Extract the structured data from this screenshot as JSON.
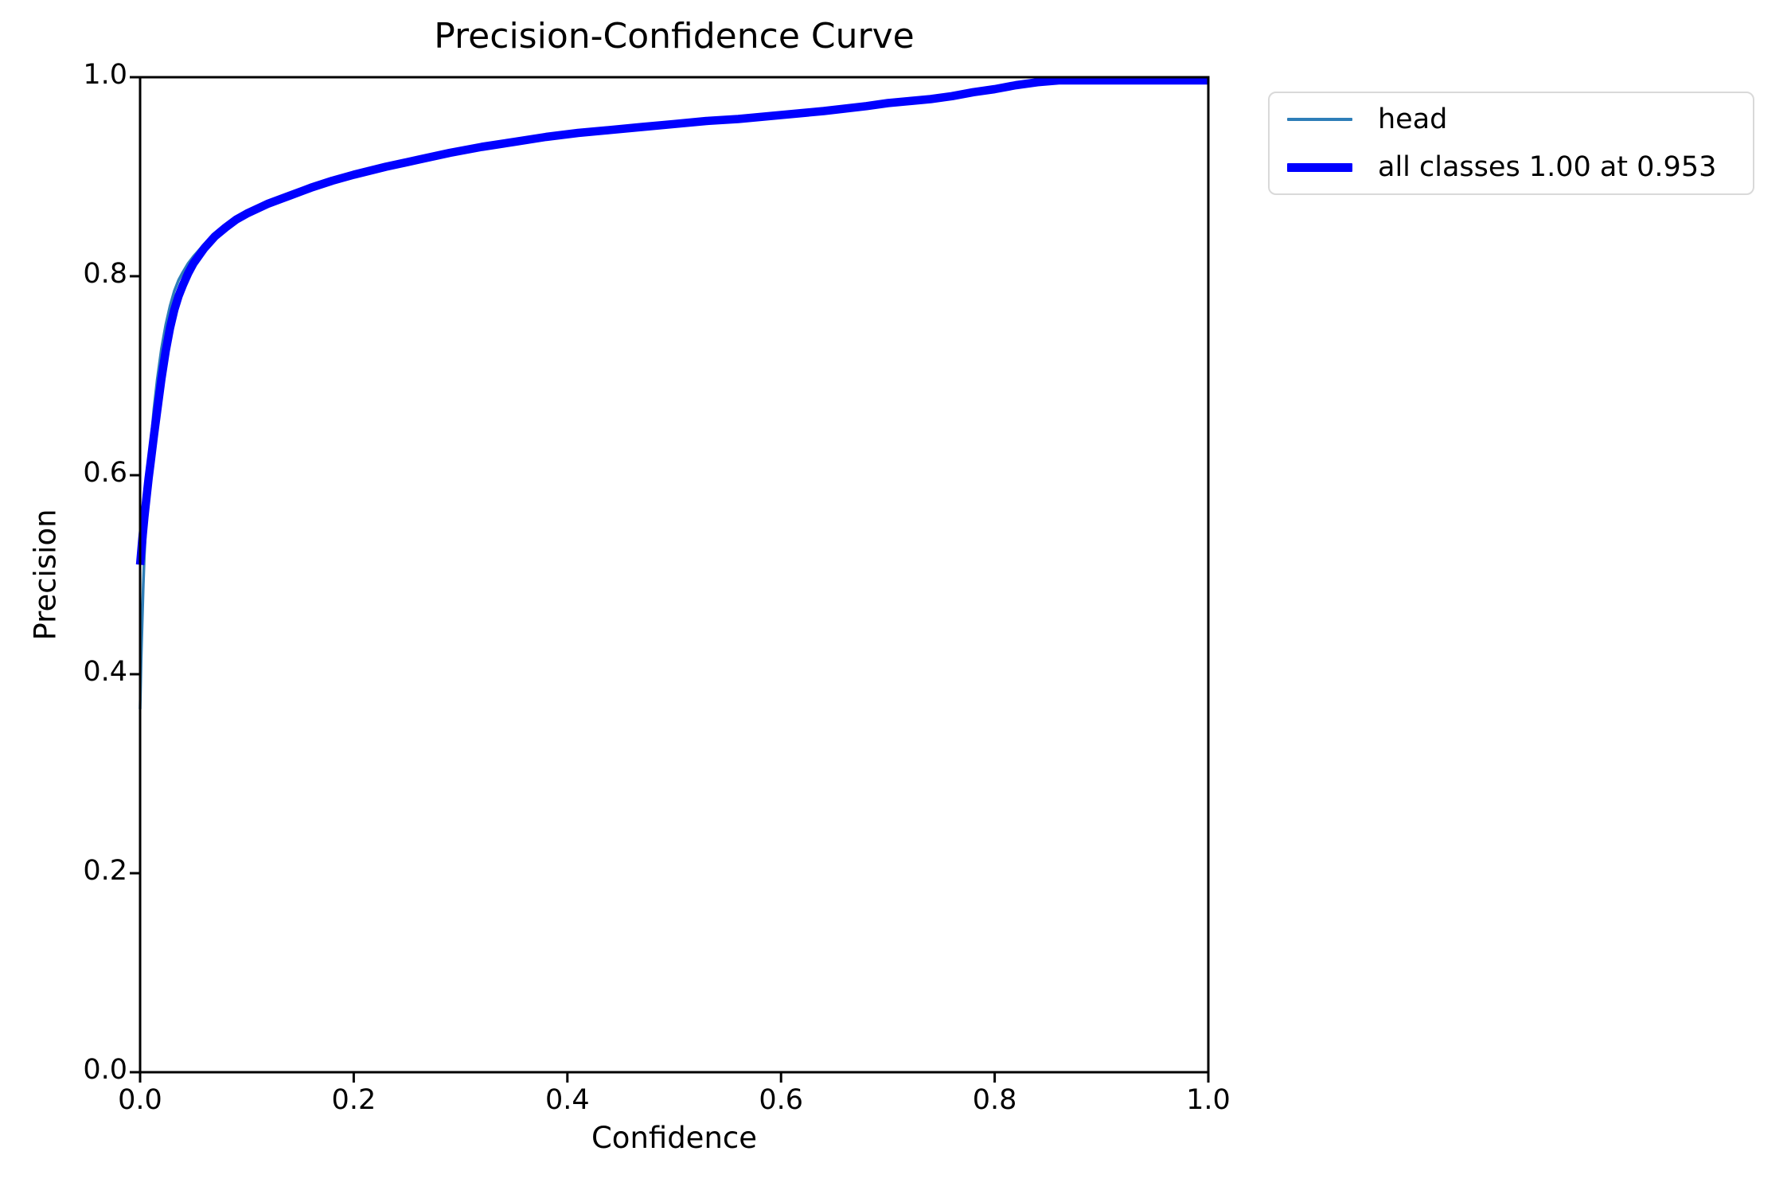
{
  "title": "Precision-Confidence Curve",
  "x_axis": {
    "label": "Confidence",
    "ticks": [
      "0.0",
      "0.2",
      "0.4",
      "0.6",
      "0.8",
      "1.0"
    ]
  },
  "y_axis": {
    "label": "Precision",
    "ticks": [
      "0.0",
      "0.2",
      "0.4",
      "0.6",
      "0.8",
      "1.0"
    ]
  },
  "legend": {
    "items": [
      {
        "label": "head",
        "style": "thin"
      },
      {
        "label": "all classes 1.00 at 0.953",
        "style": "thick"
      }
    ]
  },
  "chart_data": {
    "type": "line",
    "title": "Precision-Confidence Curve",
    "xlabel": "Confidence",
    "ylabel": "Precision",
    "xlim": [
      0,
      1
    ],
    "ylim": [
      0,
      1
    ],
    "grid": false,
    "legend_position": "outside-upper-right",
    "annotation": "all classes reach precision 1.00 at confidence 0.953",
    "series": [
      {
        "name": "head",
        "color": "#2e7eb8",
        "linewidth": "thin",
        "points": [
          [
            0.0,
            0.365
          ],
          [
            0.001,
            0.415
          ],
          [
            0.002,
            0.455
          ],
          [
            0.003,
            0.49
          ],
          [
            0.004,
            0.52
          ],
          [
            0.006,
            0.565
          ],
          [
            0.008,
            0.601
          ],
          [
            0.01,
            0.632
          ],
          [
            0.013,
            0.667
          ],
          [
            0.016,
            0.696
          ],
          [
            0.02,
            0.727
          ],
          [
            0.024,
            0.751
          ],
          [
            0.028,
            0.77
          ],
          [
            0.032,
            0.785
          ],
          [
            0.036,
            0.796
          ],
          [
            0.04,
            0.804
          ],
          [
            0.045,
            0.813
          ],
          [
            0.05,
            0.82
          ],
          [
            0.06,
            0.832
          ],
          [
            0.07,
            0.843
          ],
          [
            0.08,
            0.851
          ],
          [
            0.09,
            0.858
          ],
          [
            0.1,
            0.864
          ],
          [
            0.12,
            0.873
          ],
          [
            0.14,
            0.881
          ],
          [
            0.16,
            0.889
          ],
          [
            0.18,
            0.896
          ],
          [
            0.2,
            0.902
          ],
          [
            0.23,
            0.91
          ],
          [
            0.26,
            0.917
          ],
          [
            0.29,
            0.924
          ],
          [
            0.32,
            0.93
          ],
          [
            0.35,
            0.935
          ],
          [
            0.38,
            0.94
          ],
          [
            0.41,
            0.944
          ],
          [
            0.44,
            0.947
          ],
          [
            0.47,
            0.95
          ],
          [
            0.5,
            0.953
          ],
          [
            0.53,
            0.956
          ],
          [
            0.56,
            0.958
          ],
          [
            0.6,
            0.962
          ],
          [
            0.64,
            0.966
          ],
          [
            0.68,
            0.971
          ],
          [
            0.7,
            0.974
          ],
          [
            0.72,
            0.976
          ],
          [
            0.74,
            0.978
          ],
          [
            0.76,
            0.981
          ],
          [
            0.78,
            0.985
          ],
          [
            0.8,
            0.988
          ],
          [
            0.82,
            0.992
          ],
          [
            0.84,
            0.995
          ],
          [
            0.86,
            0.998
          ],
          [
            0.88,
            0.999
          ],
          [
            0.9,
            1.0
          ],
          [
            0.953,
            1.0
          ],
          [
            1.0,
            1.0
          ]
        ]
      },
      {
        "name": "all classes 1.00 at 0.953",
        "color": "#0000ff",
        "linewidth": "thick",
        "points": [
          [
            0.0,
            0.51
          ],
          [
            0.002,
            0.535
          ],
          [
            0.004,
            0.558
          ],
          [
            0.006,
            0.578
          ],
          [
            0.008,
            0.597
          ],
          [
            0.01,
            0.614
          ],
          [
            0.013,
            0.64
          ],
          [
            0.016,
            0.665
          ],
          [
            0.02,
            0.697
          ],
          [
            0.024,
            0.725
          ],
          [
            0.028,
            0.748
          ],
          [
            0.032,
            0.766
          ],
          [
            0.036,
            0.78
          ],
          [
            0.04,
            0.791
          ],
          [
            0.045,
            0.803
          ],
          [
            0.05,
            0.813
          ],
          [
            0.06,
            0.828
          ],
          [
            0.07,
            0.84
          ],
          [
            0.08,
            0.849
          ],
          [
            0.09,
            0.857
          ],
          [
            0.1,
            0.863
          ],
          [
            0.12,
            0.873
          ],
          [
            0.14,
            0.881
          ],
          [
            0.16,
            0.889
          ],
          [
            0.18,
            0.896
          ],
          [
            0.2,
            0.902
          ],
          [
            0.23,
            0.91
          ],
          [
            0.26,
            0.917
          ],
          [
            0.29,
            0.924
          ],
          [
            0.32,
            0.93
          ],
          [
            0.35,
            0.935
          ],
          [
            0.38,
            0.94
          ],
          [
            0.41,
            0.944
          ],
          [
            0.44,
            0.947
          ],
          [
            0.47,
            0.95
          ],
          [
            0.5,
            0.953
          ],
          [
            0.53,
            0.956
          ],
          [
            0.56,
            0.958
          ],
          [
            0.6,
            0.962
          ],
          [
            0.64,
            0.966
          ],
          [
            0.68,
            0.971
          ],
          [
            0.7,
            0.974
          ],
          [
            0.72,
            0.976
          ],
          [
            0.74,
            0.978
          ],
          [
            0.76,
            0.981
          ],
          [
            0.78,
            0.985
          ],
          [
            0.8,
            0.988
          ],
          [
            0.82,
            0.992
          ],
          [
            0.84,
            0.995
          ],
          [
            0.86,
            0.998
          ],
          [
            0.88,
            0.999
          ],
          [
            0.9,
            1.0
          ],
          [
            0.953,
            1.0
          ],
          [
            1.0,
            1.0
          ]
        ]
      }
    ]
  }
}
